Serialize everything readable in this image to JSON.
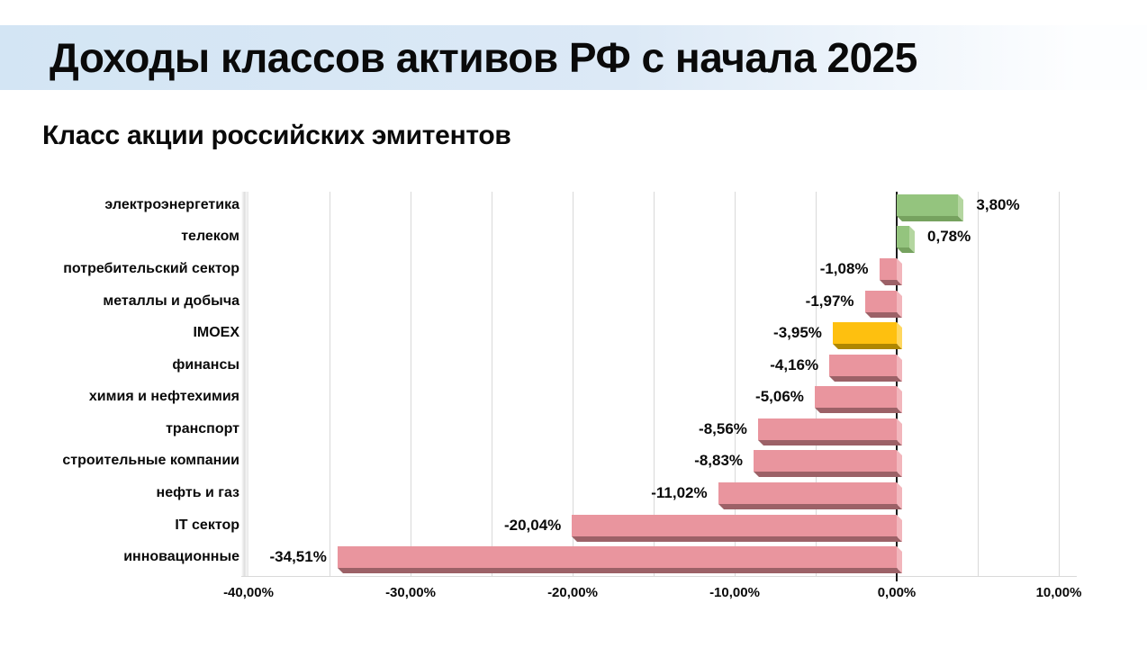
{
  "header": {
    "title": "Доходы классов активов РФ с начала 2025"
  },
  "subtitle": "Класс акции российских эмитентов",
  "banner": {
    "gradient_from": "#D3E5F4",
    "gradient_mid": "#DCE9F6",
    "gradient_to": "#FDFEFF"
  },
  "chart_data": {
    "type": "bar",
    "orientation": "horizontal",
    "title": "Класс акции российских эмитентов",
    "xlabel": "",
    "ylabel": "",
    "xlim": [
      -40,
      10
    ],
    "grid": true,
    "minor_grid_step": 5,
    "legend": false,
    "grid_color": "#D9D9D9",
    "axis_color": "#1A1A1A",
    "x_ticks": [
      {
        "value": -40,
        "label": "-40,00%"
      },
      {
        "value": -30,
        "label": "-30,00%"
      },
      {
        "value": -20,
        "label": "-20,00%"
      },
      {
        "value": -10,
        "label": "-10,00%"
      },
      {
        "value": 0,
        "label": "0,00%"
      },
      {
        "value": 10,
        "label": "10,00%"
      }
    ],
    "bars": [
      {
        "category": "электроэнергетика",
        "value": 3.8,
        "label": "3,80%",
        "color": "green"
      },
      {
        "category": "телеком",
        "value": 0.78,
        "label": "0,78%",
        "color": "green"
      },
      {
        "category": "потребительский сектор",
        "value": -1.08,
        "label": "-1,08%",
        "color": "pink"
      },
      {
        "category": "металлы и добыча",
        "value": -1.97,
        "label": "-1,97%",
        "color": "pink"
      },
      {
        "category": "IMOEX",
        "value": -3.95,
        "label": "-3,95%",
        "color": "gold"
      },
      {
        "category": "финансы",
        "value": -4.16,
        "label": "-4,16%",
        "color": "pink"
      },
      {
        "category": "химия и нефтехимия",
        "value": -5.06,
        "label": "-5,06%",
        "color": "pink"
      },
      {
        "category": "транспорт",
        "value": -8.56,
        "label": "-8,56%",
        "color": "pink"
      },
      {
        "category": "строительные компании",
        "value": -8.83,
        "label": "-8,83%",
        "color": "pink"
      },
      {
        "category": "нефть и газ",
        "value": -11.02,
        "label": "-11,02%",
        "color": "pink"
      },
      {
        "category": "IT сектор",
        "value": -20.04,
        "label": "-20,04%",
        "color": "pink"
      },
      {
        "category": "инновационные",
        "value": -34.51,
        "label": "-34,51%",
        "color": "pink"
      }
    ],
    "palette": {
      "green": {
        "face": "#94C47E",
        "bottom": "#76A25F",
        "cap": "#B4D6A0"
      },
      "gold": {
        "face": "#FEC00F",
        "bottom": "#AF8700",
        "cap": "#FFD75E"
      },
      "pink": {
        "face": "#E9959E",
        "bottom": "#9C6167",
        "cap": "#F2B6BC"
      }
    }
  }
}
